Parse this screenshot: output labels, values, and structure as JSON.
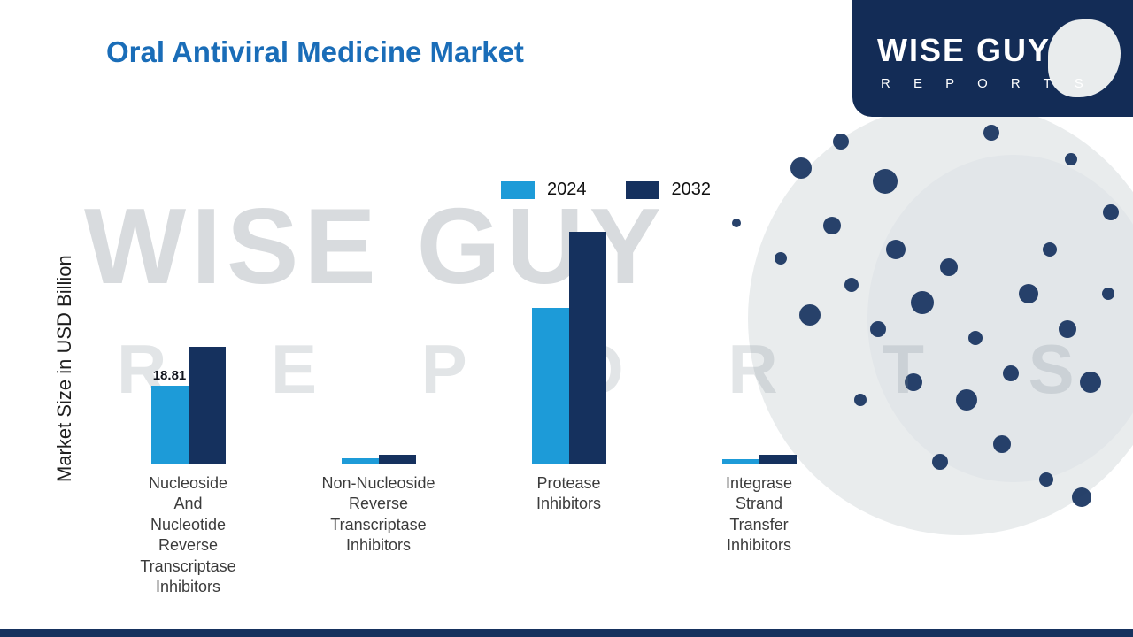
{
  "header": {
    "title": "Oral Antiviral Medicine Market"
  },
  "logo": {
    "line1": "WISE GUY",
    "line2": "R E P O R T S"
  },
  "watermark": {
    "line1": "WISE GUY",
    "line2": "R E P O R T S"
  },
  "colors": {
    "brand_navy": "#16325e",
    "brand_blue": "#1d9bd8",
    "title_blue": "#1a6db8"
  },
  "chart_data": {
    "type": "bar",
    "title": "Oral Antiviral Medicine Market",
    "xlabel": "",
    "ylabel": "Market Size in USD Billion",
    "ylim": [
      0,
      60
    ],
    "grid": false,
    "legend_position": "top",
    "categories": [
      "Nucleoside\nAnd\nNucleotide\nReverse\nTranscriptase\nInhibitors",
      "Non-Nucleoside\nReverse\nTranscriptase\nInhibitors",
      "Protease\nInhibitors",
      "Integrase\nStrand\nTransfer\nInhibitors"
    ],
    "series": [
      {
        "name": "2024",
        "color": "#1d9bd8",
        "values": [
          18.81,
          1.4,
          37.2,
          1.3
        ]
      },
      {
        "name": "2032",
        "color": "#15315e",
        "values": [
          28.0,
          2.3,
          55.3,
          2.3
        ]
      }
    ],
    "bar_labels": [
      {
        "series": "2024",
        "category_index": 0,
        "label": "18.81"
      }
    ]
  }
}
